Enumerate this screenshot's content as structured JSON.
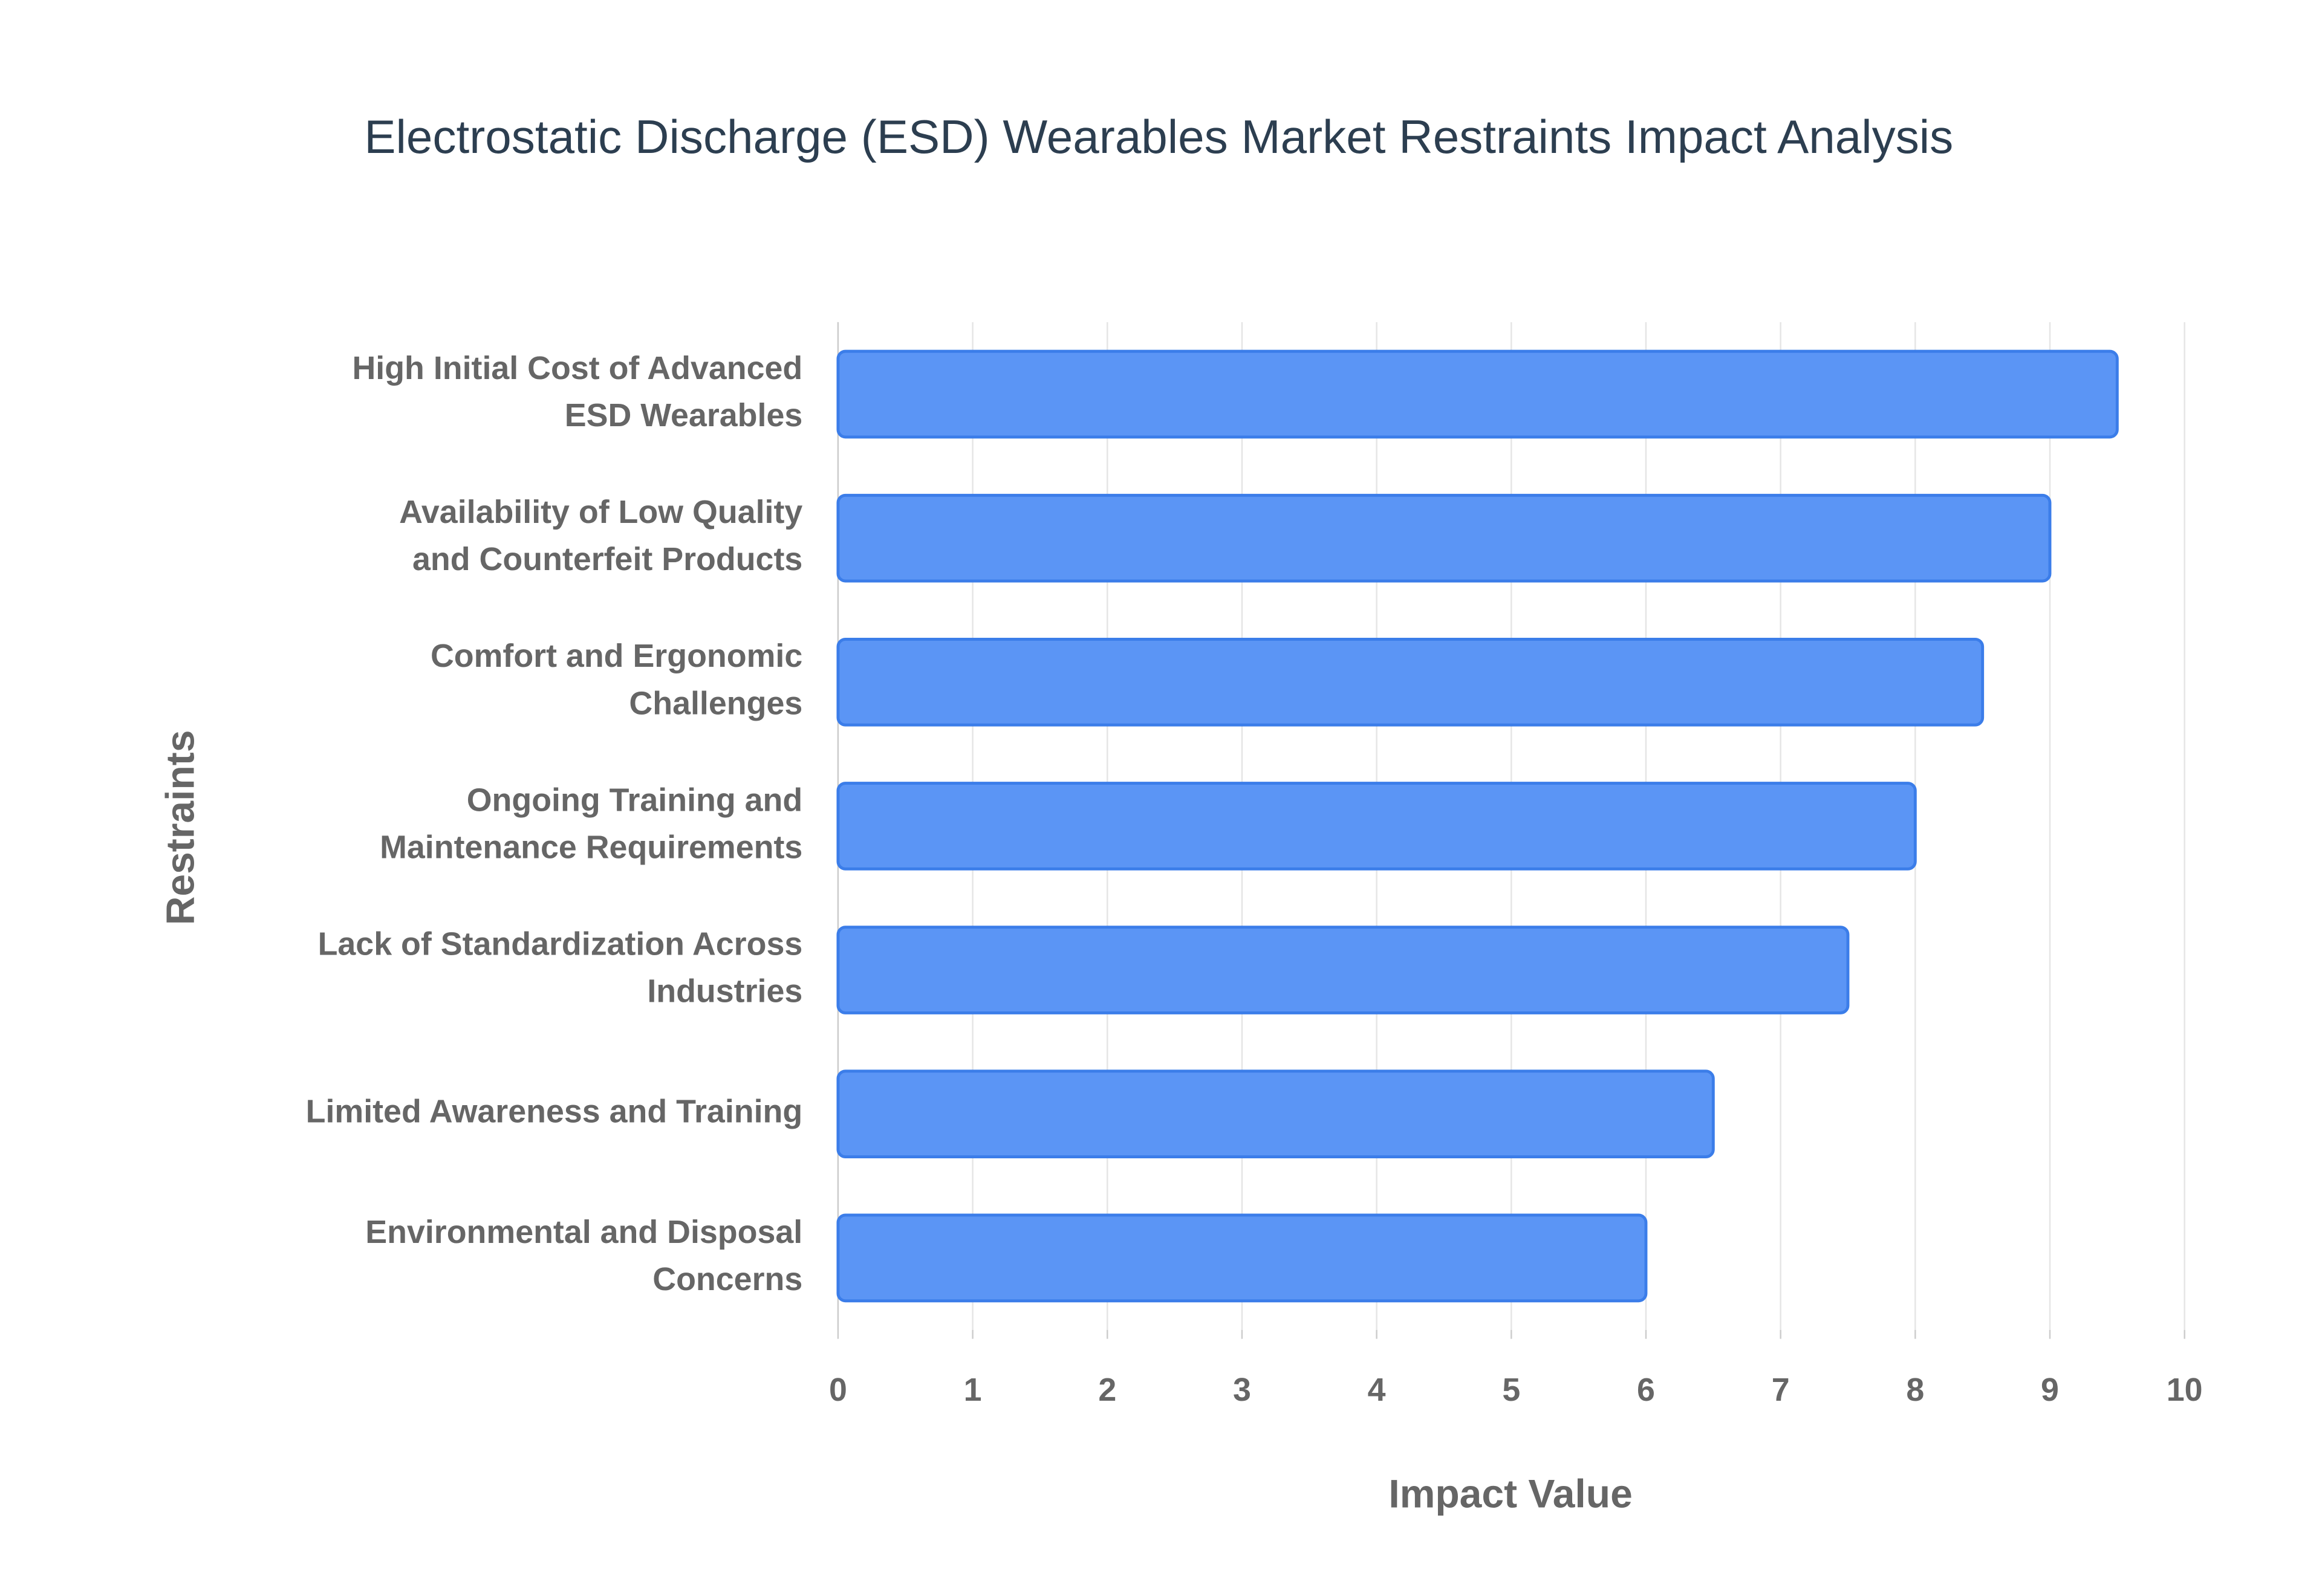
{
  "chart_data": {
    "type": "bar",
    "orientation": "horizontal",
    "title": "Electrostatic Discharge (ESD) Wearables Market Restraints Impact Analysis",
    "x_label": "Impact Value",
    "y_label": "Restraints",
    "categories": [
      "High Initial Cost of Advanced ESD Wearables",
      "Availability of Low Quality and Counterfeit Products",
      "Comfort and Ergonomic Challenges",
      "Ongoing Training and Maintenance Requirements",
      "Lack of Standardization Across Industries",
      "Limited Awareness and Training",
      "Environmental and Disposal Concerns"
    ],
    "values": [
      9.5,
      9,
      8.5,
      8,
      7.5,
      6.5,
      6
    ],
    "color": "#5b95f5",
    "border_color": "#3b7de9",
    "xlim": [
      0,
      10
    ],
    "xticks": [
      0,
      1,
      2,
      3,
      4,
      5,
      6,
      7,
      8,
      9,
      10
    ],
    "grid": true
  }
}
